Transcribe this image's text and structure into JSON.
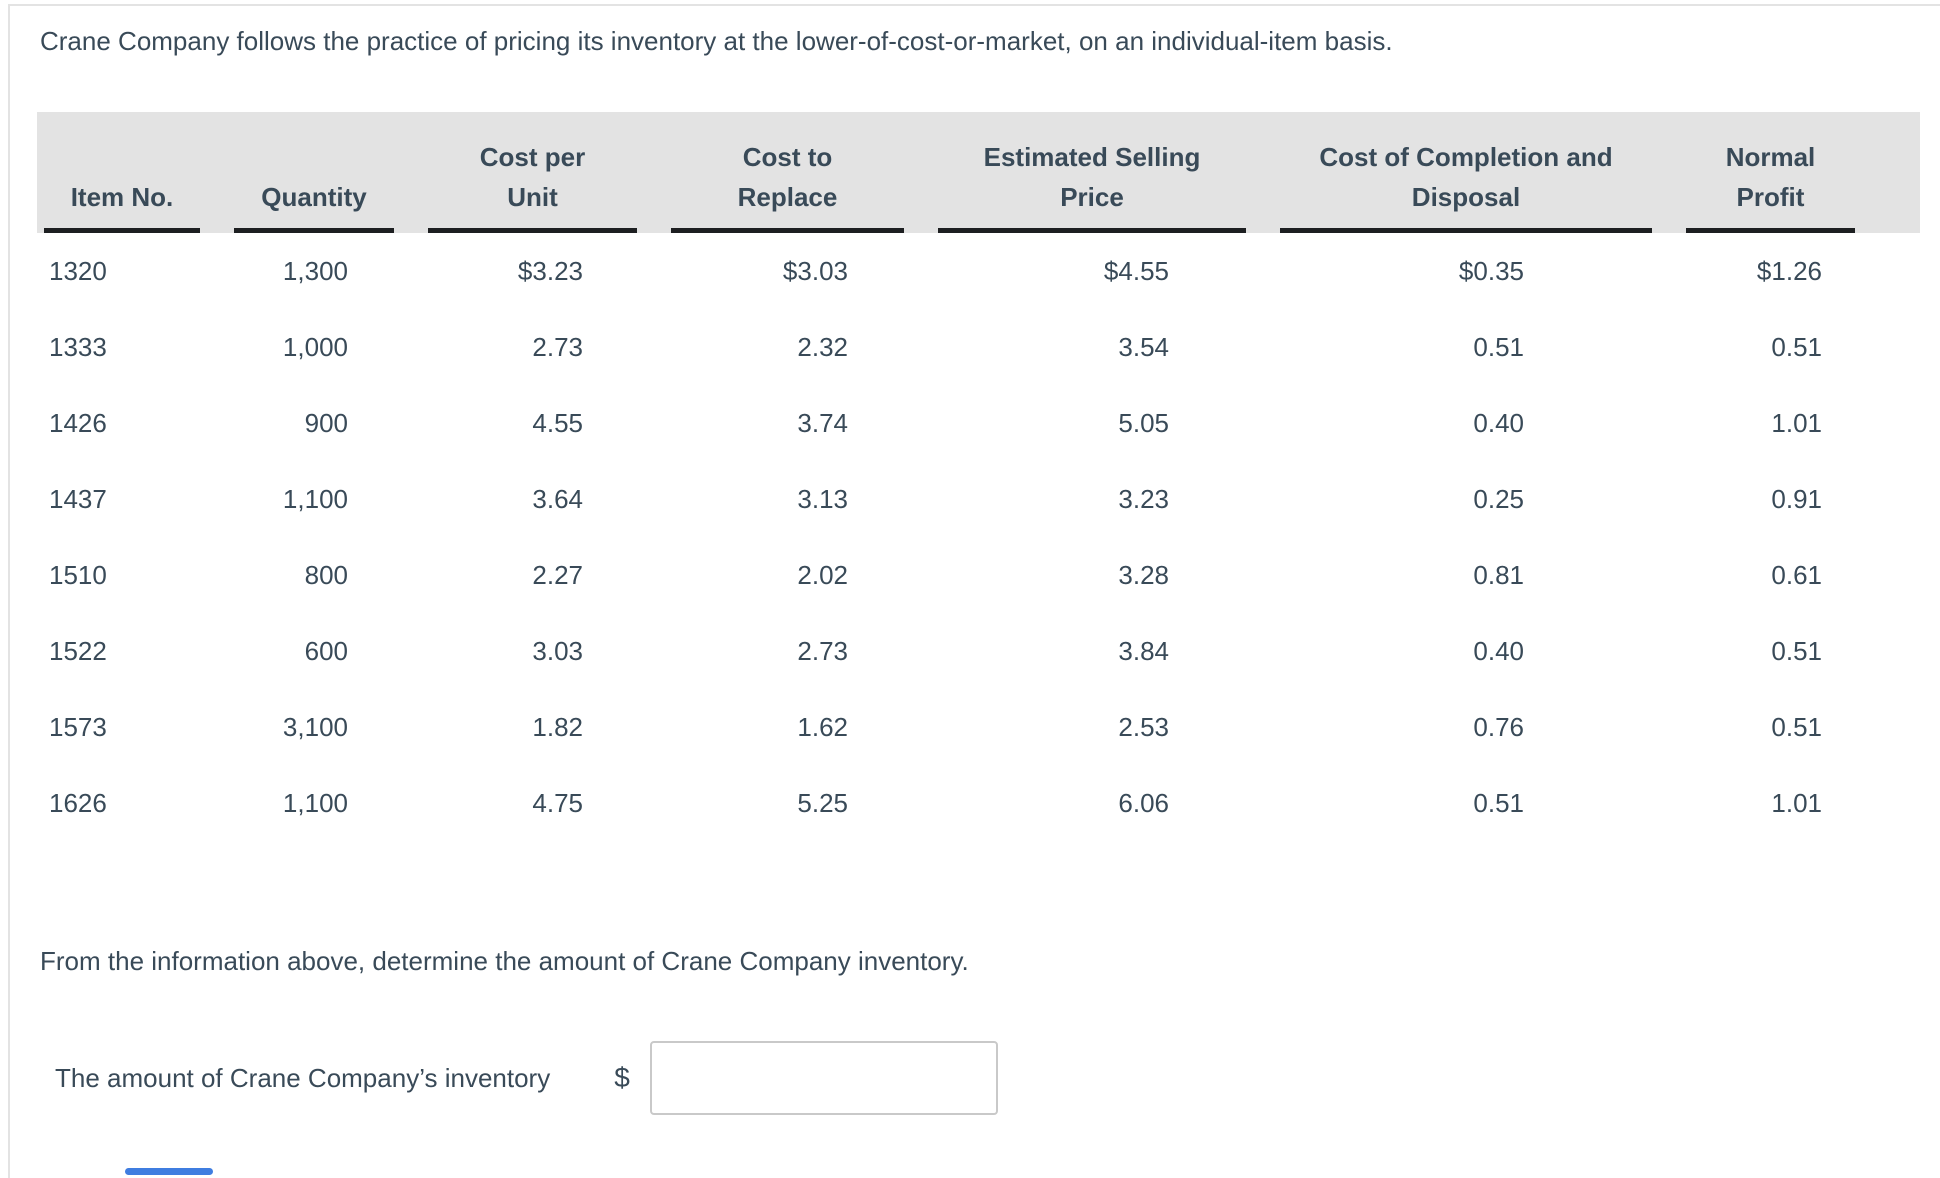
{
  "colors": {
    "text": "#394a58",
    "header_background": "#e3e3e3",
    "header_underline": "#1d1f21",
    "input_border": "#c9c9c9",
    "scrollbar_accent": "#3f7de0"
  },
  "intro": "Crane Company follows the practice of pricing its inventory at the lower-of-cost-or-market, on an individual-item basis.",
  "table": {
    "headers": [
      "Item No.",
      "Quantity",
      "Cost per\nUnit",
      "Cost to\nReplace",
      "Estimated Selling\nPrice",
      "Cost of Completion and\nDisposal",
      "Normal\nProfit"
    ],
    "rows": [
      [
        "1320",
        "1,300",
        "$3.23",
        "$3.03",
        "$4.55",
        "$0.35",
        "$1.26"
      ],
      [
        "1333",
        "1,000",
        "2.73",
        "2.32",
        "3.54",
        "0.51",
        "0.51"
      ],
      [
        "1426",
        "900",
        "4.55",
        "3.74",
        "5.05",
        "0.40",
        "1.01"
      ],
      [
        "1437",
        "1,100",
        "3.64",
        "3.13",
        "3.23",
        "0.25",
        "0.91"
      ],
      [
        "1510",
        "800",
        "2.27",
        "2.02",
        "3.28",
        "0.81",
        "0.61"
      ],
      [
        "1522",
        "600",
        "3.03",
        "2.73",
        "3.84",
        "0.40",
        "0.51"
      ],
      [
        "1573",
        "3,100",
        "1.82",
        "1.62",
        "2.53",
        "0.76",
        "0.51"
      ],
      [
        "1626",
        "1,100",
        "4.75",
        "5.25",
        "6.06",
        "0.51",
        "1.01"
      ]
    ]
  },
  "question": "From the information above, determine the amount of Crane Company inventory.",
  "answer": {
    "label": "The amount of Crane Company’s inventory",
    "currency_symbol": "$",
    "input_value": "",
    "input_placeholder": ""
  }
}
